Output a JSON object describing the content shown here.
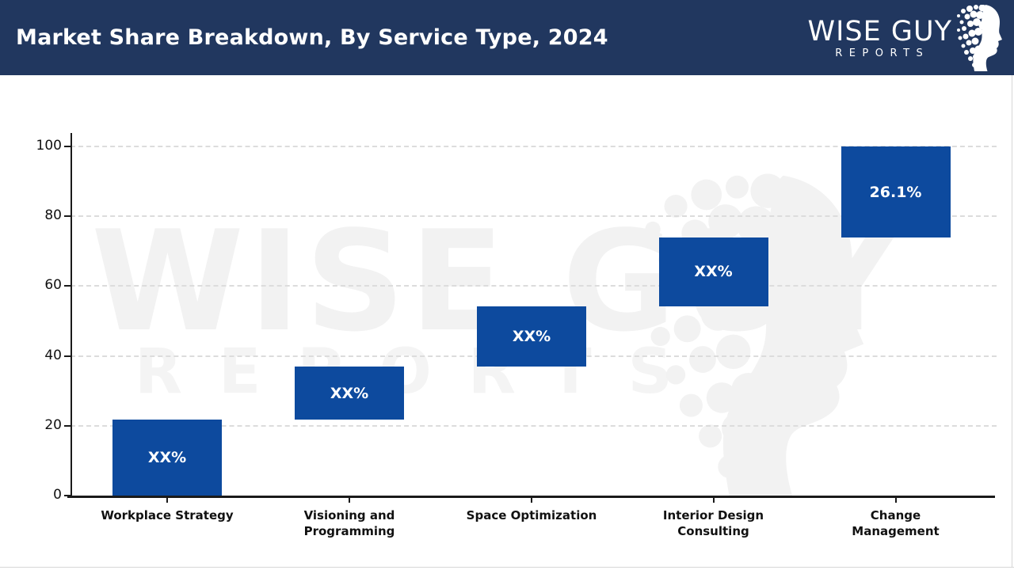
{
  "header": {
    "title": "Market Share Breakdown, By Service Type, 2024",
    "bg_color": "#21375f",
    "text_color": "#ffffff"
  },
  "logo": {
    "line1": "WISE GUY",
    "line2": "REPORTS"
  },
  "watermark": {
    "line1": "WISE GUY",
    "line2": "REPORTS"
  },
  "chart_data": {
    "type": "bar",
    "subtype": "waterfall",
    "title": "Market Share Breakdown, By Service Type, 2024",
    "categories": [
      "Workplace Strategy",
      "Visioning and Programming",
      "Space Optimization",
      "Interior Design Consulting",
      "Change Management"
    ],
    "bars": [
      {
        "category": "Workplace Strategy",
        "start": 0,
        "end": 21.7,
        "label": "XX%"
      },
      {
        "category": "Visioning and Programming",
        "start": 21.7,
        "end": 36.9,
        "label": "XX%"
      },
      {
        "category": "Space Optimization",
        "start": 36.9,
        "end": 54.2,
        "label": "XX%"
      },
      {
        "category": "Interior Design Consulting",
        "start": 54.3,
        "end": 73.9,
        "label": "XX%"
      },
      {
        "category": "Change Management",
        "start": 73.9,
        "end": 100,
        "label": "26.1%"
      }
    ],
    "xlabel": "",
    "ylabel": "",
    "ylim": [
      0,
      100
    ],
    "yticks": [
      0,
      20,
      40,
      60,
      80,
      100
    ],
    "grid": "horizontal-dashed",
    "legend": "none",
    "bar_color": "#0d4a9e",
    "bar_label_color": "#ffffff",
    "grid_color": "#dcdcdc",
    "axis_color": "#1a1a1a"
  }
}
